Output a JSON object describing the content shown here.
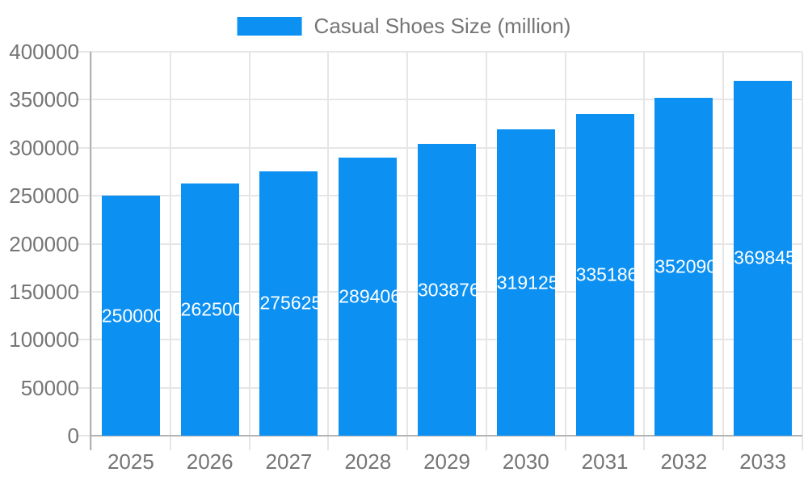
{
  "legend": {
    "label": "Casual Shoes Size (million)"
  },
  "colors": {
    "bar": "#0c90f2",
    "grid": "#e6e6e6",
    "axis_line": "#b3b3b3",
    "axis_text": "#757575",
    "bar_label_text": "#ffffff",
    "background": "#ffffff"
  },
  "chart_data": {
    "type": "bar",
    "title": "Casual Shoes Size (million)",
    "categories": [
      "2025",
      "2026",
      "2027",
      "2028",
      "2029",
      "2030",
      "2031",
      "2032",
      "2033"
    ],
    "series": [
      {
        "name": "Casual Shoes Size (million)",
        "values": [
          250000,
          262500,
          275625,
          289406,
          303876,
          319125,
          335186,
          352090,
          369845
        ]
      }
    ],
    "bar_labels": [
      "250000",
      "262500",
      "275625",
      "289406",
      "303876",
      "319125",
      "335186",
      "352090",
      "369845"
    ],
    "xlabel": "",
    "ylabel": "",
    "ylim": [
      0,
      400000
    ],
    "yticks": [
      0,
      50000,
      100000,
      150000,
      200000,
      250000,
      300000,
      350000,
      400000
    ],
    "grid": true,
    "legend_position": "top-center",
    "data_label_position": "inside-center"
  }
}
